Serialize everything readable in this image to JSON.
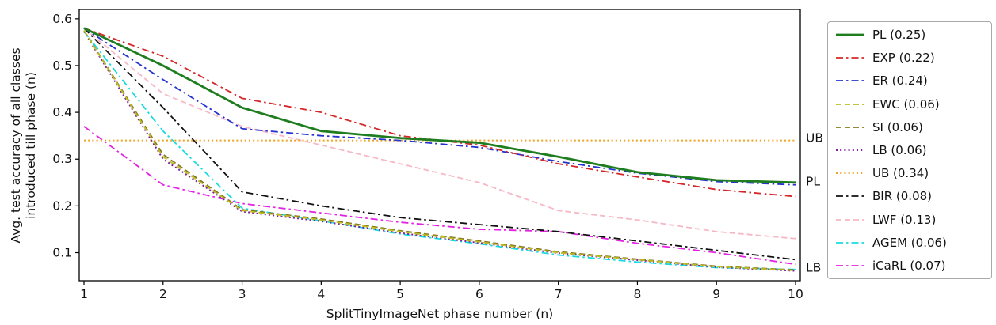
{
  "chart_data": {
    "type": "line",
    "title": "",
    "xlabel": "SplitTinyImageNet phase number (n)",
    "ylabel_lines": [
      "Avg. test accuracy of all classes",
      "introduced till phase (n)"
    ],
    "x": [
      1,
      2,
      3,
      4,
      5,
      6,
      7,
      8,
      9,
      10
    ],
    "xticks": [
      1,
      2,
      3,
      4,
      5,
      6,
      7,
      8,
      9,
      10
    ],
    "yticks": [
      0.1,
      0.2,
      0.3,
      0.4,
      0.5,
      0.6
    ],
    "xlim": [
      1,
      10
    ],
    "ylim": [
      0.04,
      0.62
    ],
    "grid": false,
    "legend_position": "right-outside",
    "series": [
      {
        "label": "PL (0.25)",
        "color": "#1e7d1e",
        "style": "solid",
        "width": 2.8,
        "values": [
          0.58,
          0.5,
          0.41,
          0.36,
          0.345,
          0.335,
          0.305,
          0.272,
          0.255,
          0.25
        ]
      },
      {
        "label": "EXP (0.22)",
        "color": "#d62728",
        "style": "dashdot",
        "width": 1.8,
        "values": [
          0.58,
          0.52,
          0.43,
          0.4,
          0.35,
          0.33,
          0.29,
          0.262,
          0.235,
          0.22
        ]
      },
      {
        "label": "ER (0.24)",
        "color": "#2433cf",
        "style": "dashdot",
        "width": 1.8,
        "values": [
          0.58,
          0.47,
          0.365,
          0.35,
          0.34,
          0.325,
          0.295,
          0.27,
          0.252,
          0.245
        ]
      },
      {
        "label": "EWC (0.06)",
        "color": "#bcbd22",
        "style": "dashed",
        "width": 1.8,
        "values": [
          0.575,
          0.305,
          0.19,
          0.17,
          0.145,
          0.123,
          0.1,
          0.085,
          0.07,
          0.062
        ]
      },
      {
        "label": "SI (0.06)",
        "color": "#86781e",
        "style": "dashed",
        "width": 1.8,
        "values": [
          0.575,
          0.31,
          0.192,
          0.172,
          0.147,
          0.125,
          0.102,
          0.086,
          0.071,
          0.063
        ]
      },
      {
        "label": "LB (0.06)",
        "color": "#7d1fa0",
        "style": "dotted",
        "width": 2.0,
        "values": [
          0.573,
          0.3,
          0.188,
          0.167,
          0.142,
          0.121,
          0.099,
          0.084,
          0.069,
          0.061
        ]
      },
      {
        "label": "UB (0.34)",
        "color": "#efa423",
        "style": "dotted",
        "width": 2.0,
        "values": [
          0.34,
          0.34,
          0.34,
          0.34,
          0.34,
          0.34,
          0.34,
          0.34,
          0.34,
          0.34
        ]
      },
      {
        "label": "BIR (0.08)",
        "color": "#111111",
        "style": "dashdot",
        "width": 1.8,
        "values": [
          0.58,
          0.41,
          0.23,
          0.2,
          0.175,
          0.16,
          0.145,
          0.125,
          0.105,
          0.085
        ]
      },
      {
        "label": "LWF (0.13)",
        "color": "#f7b8c6",
        "style": "dashed",
        "width": 1.8,
        "values": [
          0.58,
          0.44,
          0.37,
          0.33,
          0.29,
          0.25,
          0.19,
          0.17,
          0.145,
          0.13
        ]
      },
      {
        "label": "AGEM (0.06)",
        "color": "#17dbe0",
        "style": "dashdot",
        "width": 1.8,
        "values": [
          0.573,
          0.36,
          0.195,
          0.168,
          0.14,
          0.119,
          0.095,
          0.08,
          0.068,
          0.064
        ]
      },
      {
        "label": "iCaRL (0.07)",
        "color": "#e322e3",
        "style": "dashdot",
        "width": 1.8,
        "values": [
          0.37,
          0.245,
          0.205,
          0.185,
          0.165,
          0.15,
          0.145,
          0.12,
          0.1,
          0.075
        ]
      }
    ],
    "annotations": [
      {
        "text": "UB",
        "y": 0.345
      },
      {
        "text": "PL",
        "y": 0.252
      },
      {
        "text": "LB",
        "y": 0.068
      }
    ]
  }
}
